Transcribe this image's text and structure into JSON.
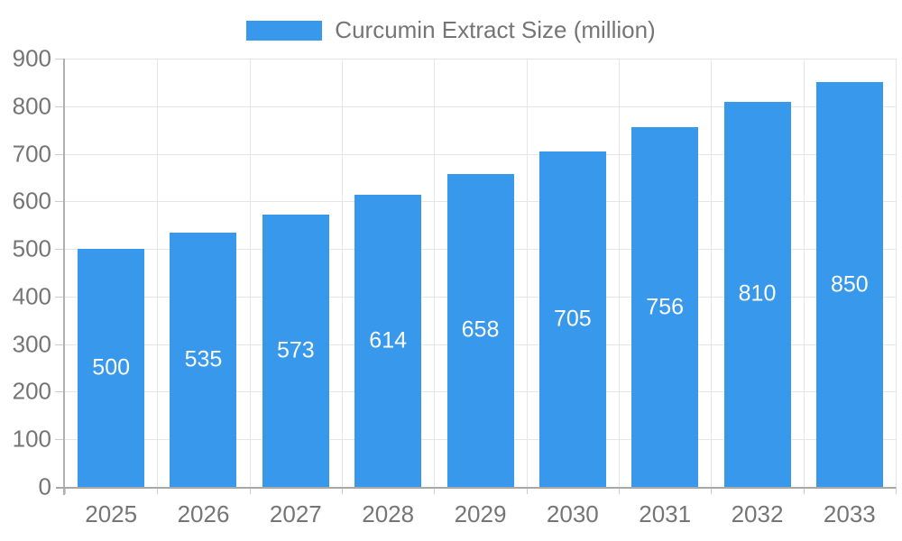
{
  "chart_data": {
    "type": "bar",
    "title": "",
    "legend": {
      "label": "Curcumin Extract Size (million)",
      "position": "top",
      "swatch_color": "#3898ec"
    },
    "categories": [
      "2025",
      "2026",
      "2027",
      "2028",
      "2029",
      "2030",
      "2031",
      "2032",
      "2033"
    ],
    "series": [
      {
        "name": "Curcumin Extract Size (million)",
        "values": [
          500,
          535,
          573,
          614,
          658,
          705,
          756,
          810,
          850
        ]
      }
    ],
    "xlabel": "",
    "ylabel": "",
    "ylim": [
      0,
      900
    ],
    "yticks": [
      0,
      100,
      200,
      300,
      400,
      500,
      600,
      700,
      800,
      900
    ],
    "grid": true,
    "colors": {
      "bar": "#3898ec",
      "bar_value_text": "#ffffff",
      "axis_text": "#757575",
      "axis_line": "#a8a8a8",
      "gridline": "#e6e6e6",
      "tick": "#cccccc",
      "background": "#ffffff"
    },
    "value_labels": "centered-inside-bars"
  }
}
